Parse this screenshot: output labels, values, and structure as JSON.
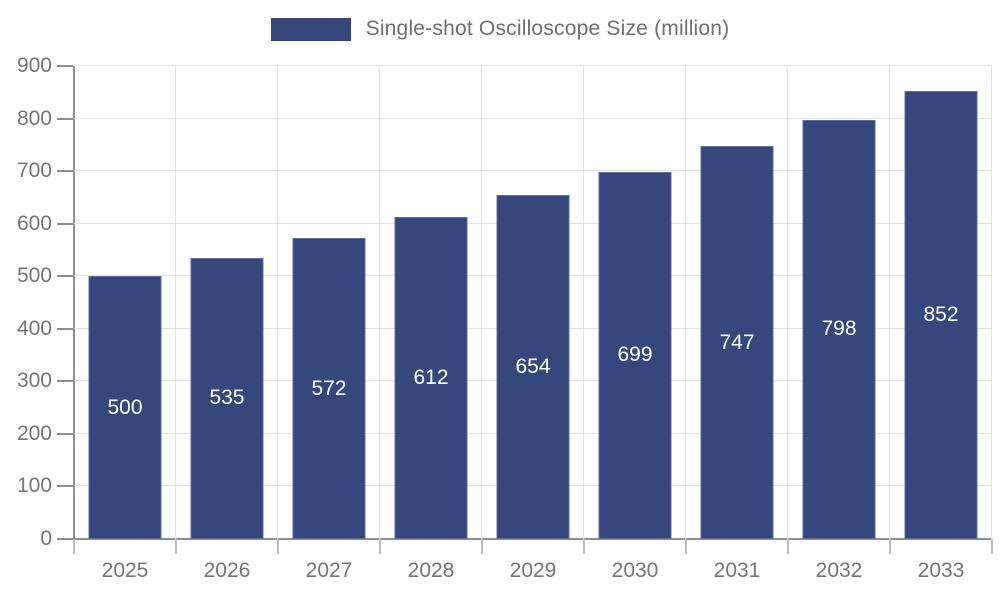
{
  "legend": {
    "label": "Single-shot Oscilloscope Size (million)"
  },
  "chart_data": {
    "type": "bar",
    "title": "",
    "xlabel": "",
    "ylabel": "",
    "categories": [
      "2025",
      "2026",
      "2027",
      "2028",
      "2029",
      "2030",
      "2031",
      "2032",
      "2033"
    ],
    "values": [
      500,
      535,
      572,
      612,
      654,
      699,
      747,
      798,
      852
    ],
    "series": [
      {
        "name": "Single-shot Oscilloscope Size (million)",
        "values": [
          500,
          535,
          572,
          612,
          654,
          699,
          747,
          798,
          852
        ]
      }
    ],
    "ylim": [
      0,
      900
    ],
    "ytick_interval": 100,
    "ytick_labels": [
      "0",
      "100",
      "200",
      "300",
      "400",
      "500",
      "600",
      "700",
      "800",
      "900"
    ],
    "grid": true,
    "legend_position": "top-center",
    "value_labels_shown": true,
    "colors": {
      "bar_fill": "#35477D",
      "bar_edge": "#5c6da1",
      "value_label": "#ffffff",
      "axis_line": "#8f8f8f",
      "tick_label": "#757575",
      "gridline": "#e4e4e4",
      "legend_text": "#6f6f6f",
      "background": "#ffffff"
    }
  }
}
